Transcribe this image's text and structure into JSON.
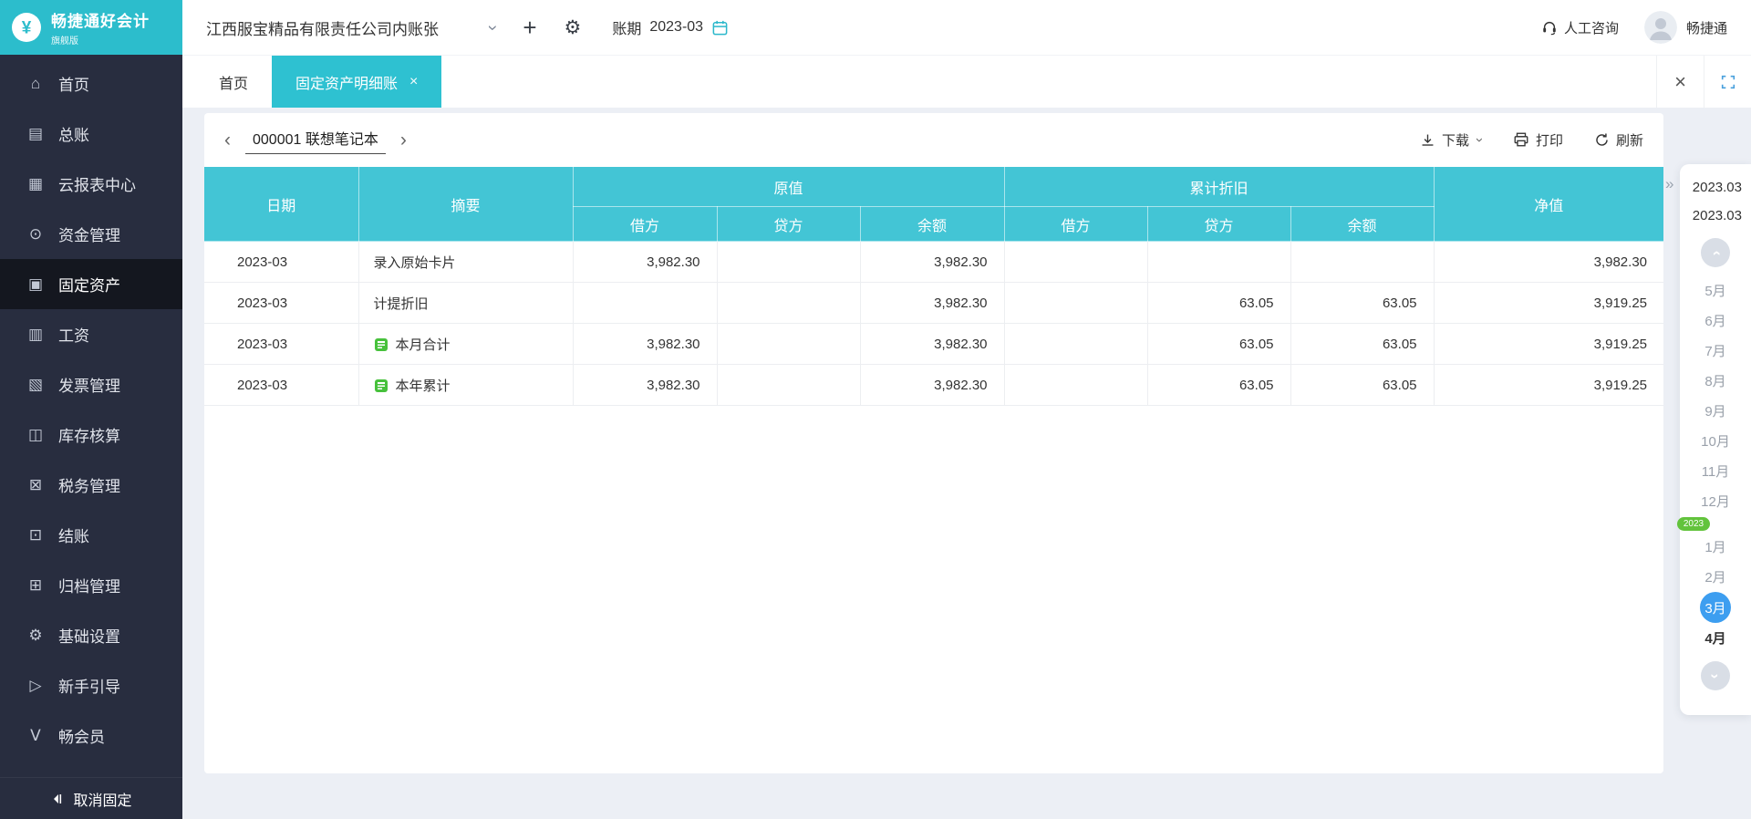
{
  "brand": {
    "app_name": "畅捷通好会计",
    "edition": "旗舰版",
    "teal": "#2CBDCC",
    "selected_month_blue": "#3D9EF0",
    "year_badge_green": "#62C33C"
  },
  "sidebar": {
    "items": [
      {
        "id": "home",
        "label": "首页",
        "active": false
      },
      {
        "id": "general-ledger",
        "label": "总账",
        "active": false
      },
      {
        "id": "cloud-report",
        "label": "云报表中心",
        "active": false
      },
      {
        "id": "fund-management",
        "label": "资金管理",
        "active": false
      },
      {
        "id": "fixed-asset",
        "label": "固定资产",
        "active": true
      },
      {
        "id": "payroll",
        "label": "工资",
        "active": false
      },
      {
        "id": "invoice-management",
        "label": "发票管理",
        "active": false
      },
      {
        "id": "inventory-accounting",
        "label": "库存核算",
        "active": false
      },
      {
        "id": "tax-management",
        "label": "税务管理",
        "active": false
      },
      {
        "id": "closing",
        "label": "结账",
        "active": false
      },
      {
        "id": "archive-management",
        "label": "归档管理",
        "active": false
      },
      {
        "id": "basic-settings",
        "label": "基础设置",
        "active": false
      },
      {
        "id": "beginner-guide",
        "label": "新手引导",
        "active": false
      },
      {
        "id": "member",
        "label": "畅会员",
        "active": false
      }
    ],
    "pin_label": "取消固定"
  },
  "topbar": {
    "company": "江西服宝精品有限责任公司内账张",
    "period_label": "账期",
    "period_value": "2023-03",
    "consult_label": "人工咨询",
    "user_name": "畅捷通"
  },
  "tabs": [
    {
      "label": "首页",
      "active": false
    },
    {
      "label": "固定资产明细账",
      "active": true,
      "closable": true
    }
  ],
  "toolbar": {
    "asset_label": "000001  联想笔记本",
    "download_label": "下载",
    "print_label": "打印",
    "refresh_label": "刷新"
  },
  "table": {
    "group_headers": {
      "original": "原值",
      "accumulated": "累计折旧"
    },
    "headers": {
      "date": "日期",
      "summary": "摘要",
      "debit": "借方",
      "credit": "贷方",
      "balance": "余额",
      "net": "净值"
    },
    "rows": [
      {
        "date": "2023-03",
        "summary": "录入原始卡片",
        "icon": false,
        "ov_debit": "3,982.30",
        "ov_credit": "",
        "ov_balance": "3,982.30",
        "ad_debit": "",
        "ad_credit": "",
        "ad_balance": "",
        "net": "3,982.30"
      },
      {
        "date": "2023-03",
        "summary": "计提折旧",
        "icon": false,
        "ov_debit": "",
        "ov_credit": "",
        "ov_balance": "3,982.30",
        "ad_debit": "",
        "ad_credit": "63.05",
        "ad_balance": "63.05",
        "net": "3,919.25"
      },
      {
        "date": "2023-03",
        "summary": "本月合计",
        "icon": true,
        "ov_debit": "3,982.30",
        "ov_credit": "",
        "ov_balance": "3,982.30",
        "ad_debit": "",
        "ad_credit": "63.05",
        "ad_balance": "63.05",
        "net": "3,919.25"
      },
      {
        "date": "2023-03",
        "summary": "本年累计",
        "icon": true,
        "ov_debit": "3,982.30",
        "ov_credit": "",
        "ov_balance": "3,982.30",
        "ad_debit": "",
        "ad_credit": "63.05",
        "ad_balance": "63.05",
        "net": "3,919.25"
      }
    ]
  },
  "timeline": {
    "dates": [
      "2023.03",
      "2023.03"
    ],
    "entries": [
      {
        "type": "month",
        "label": "5月"
      },
      {
        "type": "month",
        "label": "6月"
      },
      {
        "type": "month",
        "label": "7月"
      },
      {
        "type": "month",
        "label": "8月"
      },
      {
        "type": "month",
        "label": "9月"
      },
      {
        "type": "month",
        "label": "10月"
      },
      {
        "type": "month",
        "label": "11月"
      },
      {
        "type": "month",
        "label": "12月"
      },
      {
        "type": "year",
        "label": "2023"
      },
      {
        "type": "month",
        "label": "1月"
      },
      {
        "type": "month",
        "label": "2月"
      },
      {
        "type": "month",
        "label": "3月",
        "selected": true
      },
      {
        "type": "month",
        "label": "4月",
        "current": true
      }
    ]
  }
}
